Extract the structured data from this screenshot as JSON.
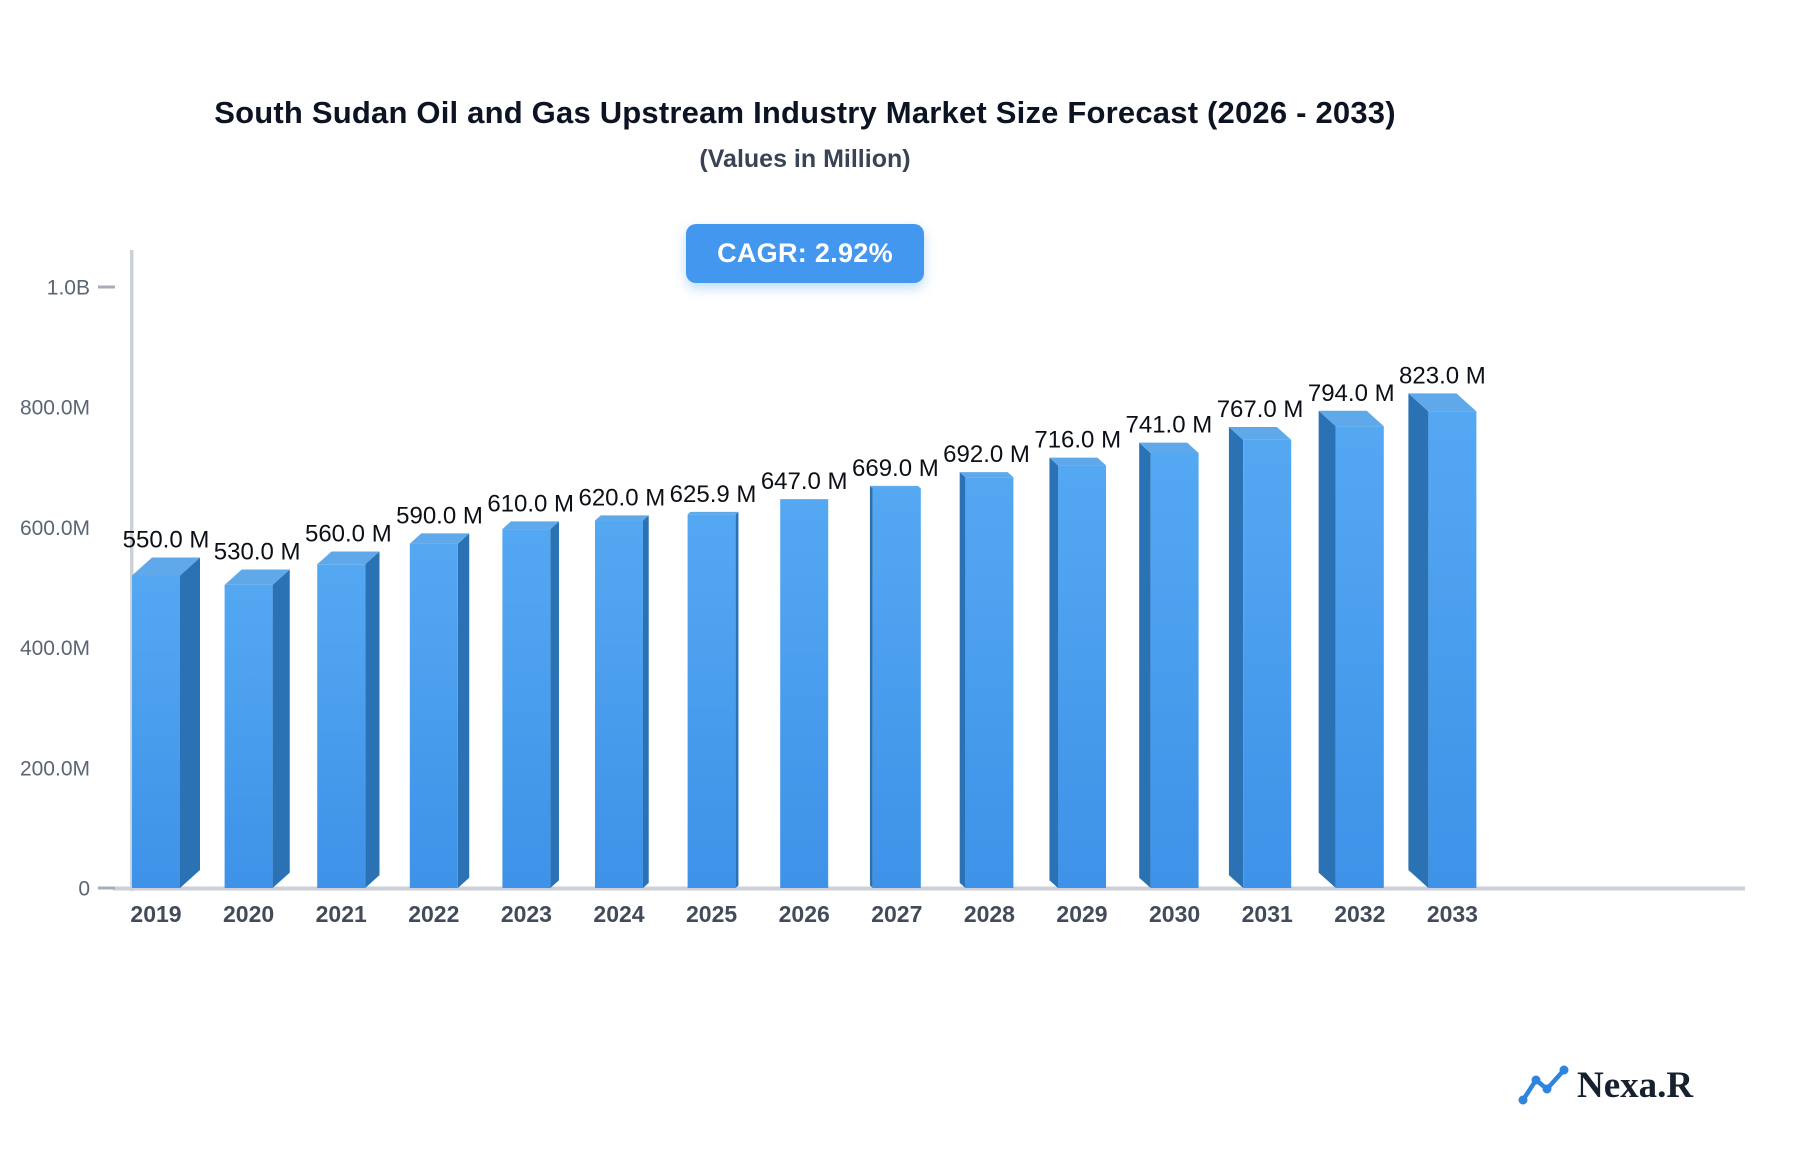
{
  "title": "South Sudan Oil and Gas Upstream Industry Market Size Forecast (2026 - 2033)",
  "subtitle": "(Values in Million)",
  "cagr_badge": "CAGR: 2.92%",
  "logo": {
    "text": "Nexa.R",
    "icon": "line-chart-icon"
  },
  "colors": {
    "bar_front_top": "#54a8f2",
    "bar_front_bottom": "#3e92e8",
    "bar_side": "#2a72b4",
    "bar_top": "#5fa9ea",
    "badge_bg": "#4397ee",
    "axis_line": "#ccd0d8",
    "tick_dash": "#a7adb8",
    "y_tick_text": "#5b6573",
    "x_tick_text": "#424b5a",
    "value_label_text": "#0b0f16"
  },
  "chart_data": {
    "type": "bar",
    "title": "South Sudan Oil and Gas Upstream Industry Market Size Forecast (2026 - 2033)",
    "subtitle": "(Values in Million)",
    "xlabel": "",
    "ylabel": "",
    "unit": "Million",
    "categories": [
      "2019",
      "2020",
      "2021",
      "2022",
      "2023",
      "2024",
      "2025",
      "2026",
      "2027",
      "2028",
      "2029",
      "2030",
      "2031",
      "2032",
      "2033"
    ],
    "values": [
      550,
      530,
      560,
      590,
      610,
      620,
      625.9,
      647,
      669,
      692,
      716,
      741,
      767,
      794,
      823
    ],
    "value_labels": [
      "550.0 M",
      "530.0 M",
      "560.0 M",
      "590.0 M",
      "610.0 M",
      "620.0 M",
      "625.9 M",
      "647.0 M",
      "669.0 M",
      "692.0 M",
      "716.0 M",
      "741.0 M",
      "767.0 M",
      "794.0 M",
      "823.0 M"
    ],
    "ylim": [
      0,
      1000
    ],
    "y_ticks": [
      {
        "label": "0",
        "value": 0,
        "dash": true
      },
      {
        "label": "200.0M",
        "value": 200,
        "dash": false
      },
      {
        "label": "400.0M",
        "value": 400,
        "dash": false
      },
      {
        "label": "600.0M",
        "value": 600,
        "dash": false
      },
      {
        "label": "800.0M",
        "value": 800,
        "dash": false
      },
      {
        "label": "1.0B",
        "value": 1000,
        "dash": true
      }
    ],
    "grid": false,
    "legend": false,
    "style": "3d-perspective-columns"
  }
}
